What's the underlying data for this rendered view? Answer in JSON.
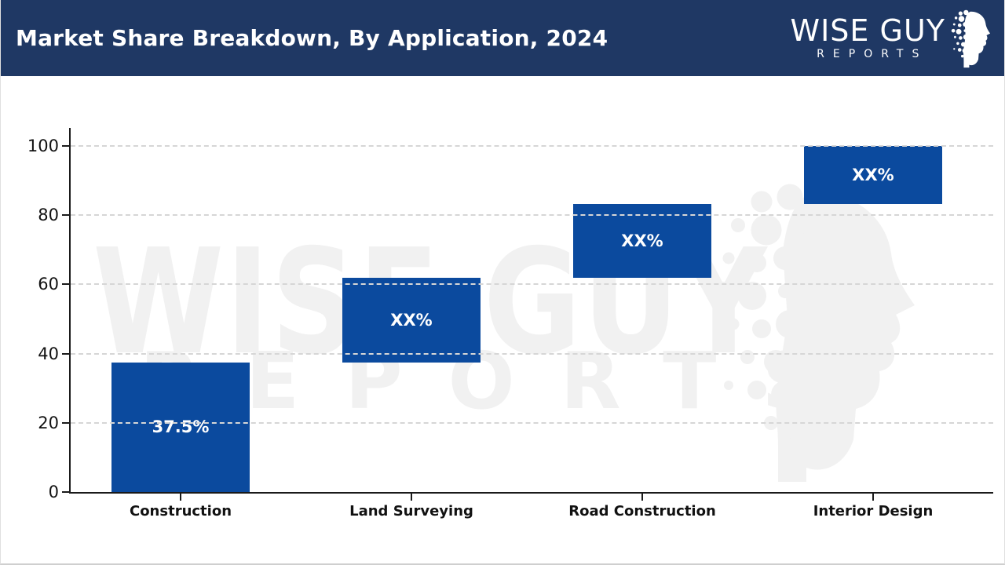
{
  "header": {
    "title": "Market Share Breakdown, By Application, 2024",
    "logo": {
      "line1": "WISE GUY",
      "line2": "REPORTS"
    }
  },
  "watermark": {
    "line1": "WISE GUY",
    "line2": "REPORTS"
  },
  "colors": {
    "header_bg": "#1f3864",
    "bar": "#0b4a9e",
    "bar_label": "#ffffff",
    "grid": "#d6d6d6",
    "axis": "#1a1a1a",
    "watermark": "#f1f1f1",
    "tick_label": "#111111"
  },
  "chart_data": {
    "type": "bar",
    "subtype": "waterfall",
    "title": "Market Share Breakdown, By Application, 2024",
    "categories": [
      "Construction",
      "Land Surveying",
      "Road Construction",
      "Interior Design"
    ],
    "segments": [
      {
        "category": "Construction",
        "start": 0,
        "end": 37.5,
        "label": "37.5%"
      },
      {
        "category": "Land Surveying",
        "start": 37.5,
        "end": 62,
        "label": "XX%"
      },
      {
        "category": "Road Construction",
        "start": 62,
        "end": 83.3,
        "label": "XX%"
      },
      {
        "category": "Interior Design",
        "start": 83.3,
        "end": 100,
        "label": "XX%"
      }
    ],
    "yticks": [
      0,
      20,
      40,
      60,
      80,
      100
    ],
    "ylim": [
      0,
      105
    ],
    "xlabel": "",
    "ylabel": "",
    "grid": "horizontal-dashed",
    "legend": "none",
    "bar_color": "#0b4a9e"
  }
}
